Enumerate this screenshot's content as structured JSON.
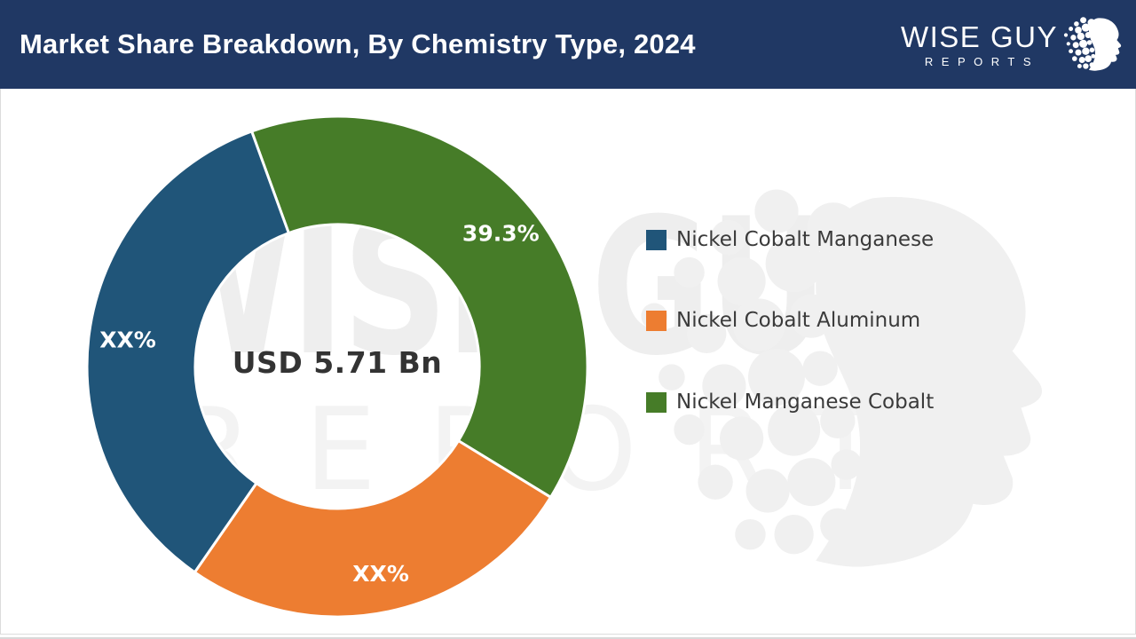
{
  "header": {
    "title": "Market Share Breakdown, By Chemistry Type, 2024",
    "logo": {
      "line1": "WISE GUY",
      "line2": "REPORTS"
    }
  },
  "watermark": {
    "line1": "WISE GUY",
    "line2": "REPORTS"
  },
  "chart": {
    "center_label": "USD 5.71 Bn"
  },
  "chart_data": {
    "type": "pie",
    "subtype": "donut",
    "title": "Market Share Breakdown, By Chemistry Type, 2024",
    "center_label": "USD 5.71 Bn",
    "start_angle_deg": 110,
    "direction": "clockwise",
    "legend_position": "right",
    "slices": [
      {
        "name": "Nickel Manganese Cobalt",
        "label": "39.3%",
        "value": 39.3,
        "color": "#467C28"
      },
      {
        "name": "Nickel Cobalt Aluminum",
        "label": "XX%",
        "value": 25.9,
        "color": "#ED7D31"
      },
      {
        "name": "Nickel Cobalt Manganese",
        "label": "XX%",
        "value": 34.8,
        "color": "#205579"
      }
    ]
  },
  "legend": {
    "items": [
      {
        "label": "Nickel Cobalt Manganese",
        "color": "#205579"
      },
      {
        "label": "Nickel Cobalt Aluminum",
        "color": "#ED7D31"
      },
      {
        "label": "Nickel Manganese Cobalt",
        "color": "#467C28"
      }
    ]
  },
  "colors": {
    "header_bg": "#203864",
    "blue": "#205579",
    "orange": "#ED7D31",
    "green": "#467C28",
    "watermark": "#f0f0f0"
  }
}
